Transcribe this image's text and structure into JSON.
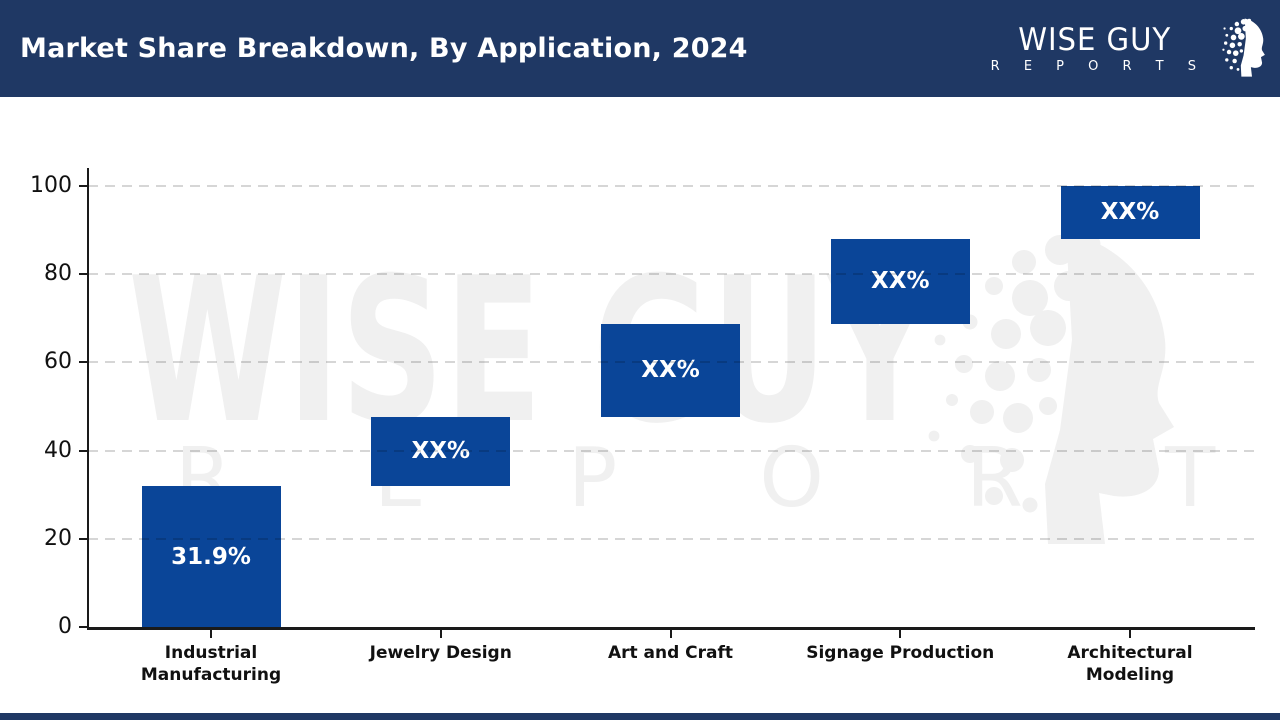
{
  "header": {
    "title": "Market Share Breakdown, By Application, 2024",
    "bg_color": "#1f3864",
    "logo": {
      "line1": "WISE GUY",
      "line2": "R E P O R T S",
      "icon": "dotted-head-profile-icon"
    }
  },
  "footer": {
    "bg_color": "#1f3864"
  },
  "watermark": {
    "line1": "WISE GUY",
    "line2": "R E P O R T S",
    "icon": "dotted-head-profile-icon"
  },
  "chart_data": {
    "type": "bar",
    "subtype": "waterfall-floating-bars",
    "title": "Market Share Breakdown, By Application, 2024",
    "categories": [
      "Industrial\nManufacturing",
      "Jewelry Design",
      "Art and Craft",
      "Signage Production",
      "Architectural\nModeling"
    ],
    "segments": [
      {
        "category": "Industrial Manufacturing",
        "start": 0,
        "end": 31.9,
        "label": "31.9%"
      },
      {
        "category": "Jewelry Design",
        "start": 31.9,
        "end": 47.7,
        "label": "XX%"
      },
      {
        "category": "Art and Craft",
        "start": 47.7,
        "end": 68.7,
        "label": "XX%"
      },
      {
        "category": "Signage Production",
        "start": 68.7,
        "end": 88.0,
        "label": "XX%"
      },
      {
        "category": "Architectural Modeling",
        "start": 88.0,
        "end": 100.0,
        "label": "XX%"
      }
    ],
    "xlabel": "",
    "ylabel": "",
    "ylim": [
      0,
      100
    ],
    "yticks": [
      0,
      20,
      40,
      60,
      80,
      100
    ],
    "grid": "dashed-horizontal",
    "legend": "none",
    "bar_color": "#0a4598",
    "value_label_color": "#ffffff"
  }
}
